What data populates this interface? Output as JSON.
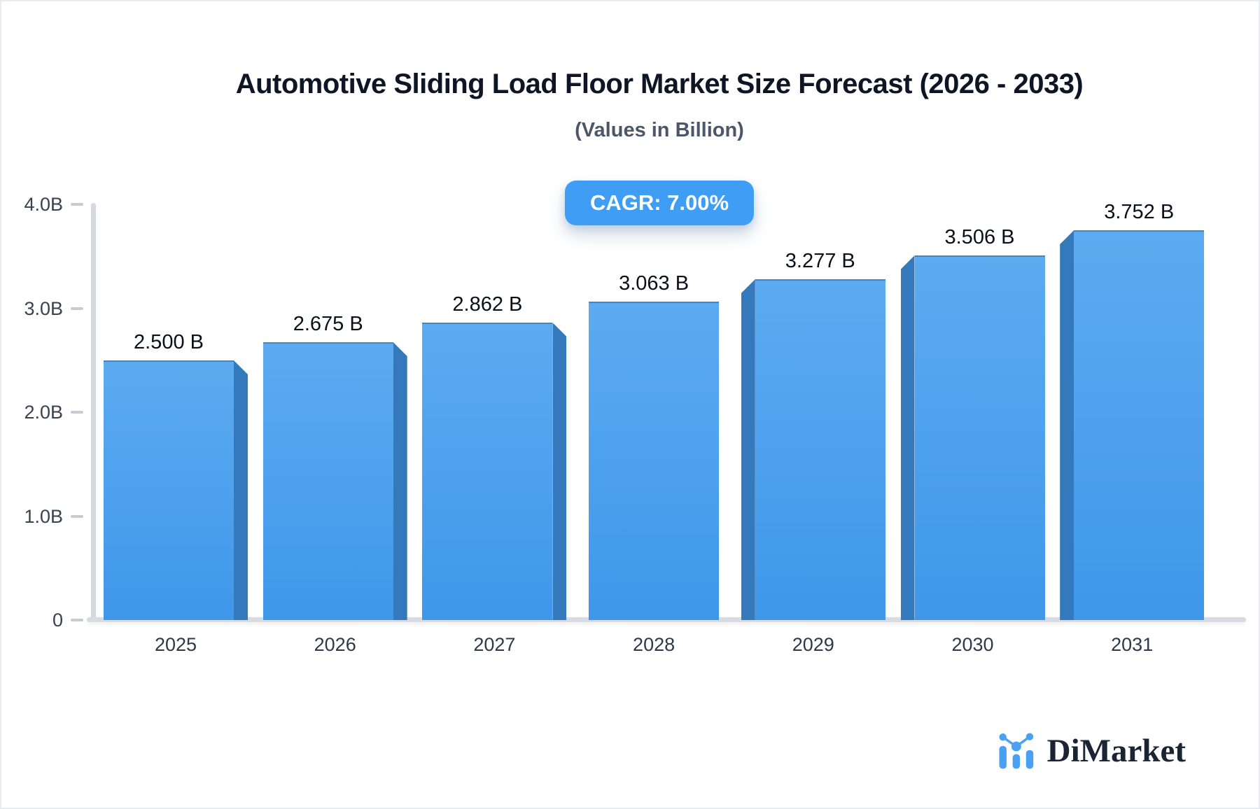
{
  "chart_data": {
    "type": "bar",
    "title": "Automotive Sliding Load Floor Market Size Forecast (2026 - 2033)",
    "subtitle": "(Values in Billion)",
    "badge_label": "CAGR: 7.00%",
    "unit": "Billion",
    "categories": [
      "2025",
      "2026",
      "2027",
      "2028",
      "2029",
      "2030",
      "2031"
    ],
    "values": [
      2.5,
      2.675,
      2.862,
      3.063,
      3.277,
      3.506,
      3.752
    ],
    "value_labels": [
      "2.500 B",
      "2.675 B",
      "2.862 B",
      "3.063 B",
      "3.277 B",
      "3.506 B",
      "3.752 B"
    ],
    "ylim": [
      0,
      4
    ],
    "y_ticks": [
      {
        "value": 4,
        "label": "4.0B"
      },
      {
        "value": 3,
        "label": "3.0B"
      },
      {
        "value": 2,
        "label": "2.0B"
      },
      {
        "value": 1,
        "label": "1.0B"
      },
      {
        "value": 0,
        "label": "0"
      }
    ],
    "grid": false,
    "legend": "none",
    "colors": {
      "bar_top": "#5cabf1",
      "bar_bottom": "#3f97ea",
      "bar_side": "#3379bb",
      "bar_top_edge": "#3a86d1",
      "badge": "#3f9ef4",
      "axis": "#d8dbe2",
      "tick": "#c7cbd3",
      "value_label": "#0a0f1a",
      "axis_label": "#39424f"
    }
  },
  "branding": {
    "name": "DiMarket",
    "logo_color": "#4aa0f2",
    "text_color": "#1a2433"
  }
}
